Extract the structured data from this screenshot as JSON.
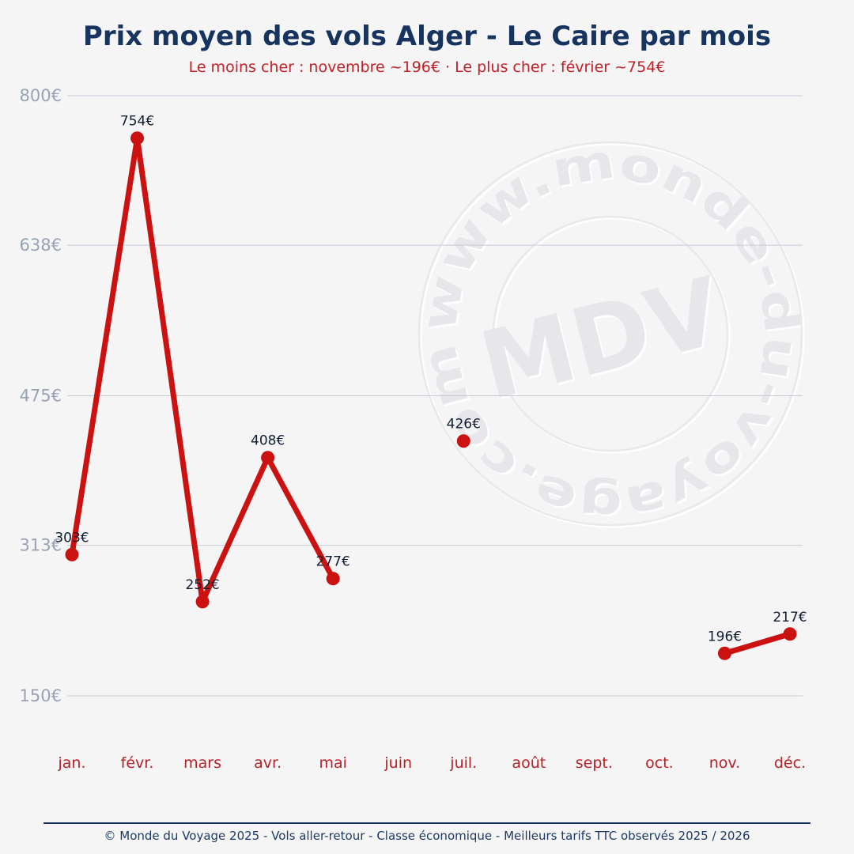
{
  "header": {
    "title": "Prix moyen des vols Alger - Le Caire par mois",
    "subtitle": "Le moins cher : novembre ~196€ · Le plus cher : février ~754€"
  },
  "chart_data": {
    "type": "line",
    "title": "Prix moyen des vols Alger - Le Caire par mois",
    "categories": [
      "jan.",
      "févr.",
      "mars",
      "avr.",
      "mai",
      "juin",
      "juil.",
      "août",
      "sept.",
      "oct.",
      "nov.",
      "déc."
    ],
    "values": [
      303,
      754,
      252,
      408,
      277,
      null,
      426,
      null,
      null,
      null,
      196,
      217
    ],
    "point_labels": [
      "303€",
      "754€",
      "252€",
      "408€",
      "277€",
      null,
      "426€",
      null,
      null,
      null,
      "196€",
      "217€"
    ],
    "yticks": [
      150,
      313,
      475,
      638,
      800
    ],
    "ytick_labels": [
      "150€",
      "313€",
      "475€",
      "638€",
      "800€"
    ],
    "ylim": [
      150,
      800
    ],
    "grid": true,
    "legend": "none",
    "series_color": "#cc1111",
    "cheapest": {
      "month": "novembre",
      "value": 196
    },
    "most_expensive": {
      "month": "février",
      "value": 754
    }
  },
  "watermark": {
    "ring_text": "www.monde-du-voyage.com",
    "center_text": "MDV"
  },
  "footer": {
    "text": "© Monde du Voyage 2025 - Vols aller-retour - Classe économique - Meilleurs tarifs TTC observés 2025 / 2026"
  },
  "colors": {
    "background": "#f5f5f6",
    "title": "#16345f",
    "subtitle_red": "#c22026",
    "line_red": "#cc1111",
    "axis_gray": "#99a2b4",
    "gridline": "#c5cad6",
    "point_label": "#101c33",
    "footer_navy": "#1c3a66"
  }
}
